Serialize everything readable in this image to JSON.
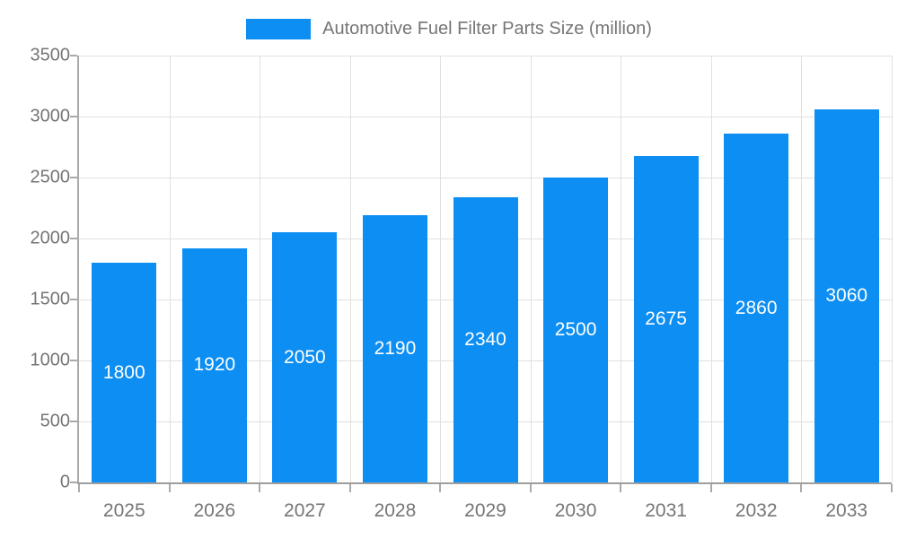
{
  "chart_data": {
    "type": "bar",
    "title": "",
    "legend": [
      "Automotive Fuel Filter Parts Size (million)"
    ],
    "legend_position": "top",
    "categories": [
      "2025",
      "2026",
      "2027",
      "2028",
      "2029",
      "2030",
      "2031",
      "2032",
      "2033"
    ],
    "values": [
      1800,
      1920,
      2050,
      2190,
      2340,
      2500,
      2675,
      2860,
      3060
    ],
    "xlabel": "",
    "ylabel": "",
    "ylim": [
      0,
      3500
    ],
    "yticks": [
      0,
      500,
      1000,
      1500,
      2000,
      2500,
      3000,
      3500
    ],
    "grid": true,
    "colors": {
      "bar": "#0d8ef2",
      "bar_value_label": "#ffffff",
      "axis_text": "#757575",
      "grid_line": "#e0e0e0",
      "axis_line": "#9e9e9e",
      "background": "#ffffff"
    }
  }
}
